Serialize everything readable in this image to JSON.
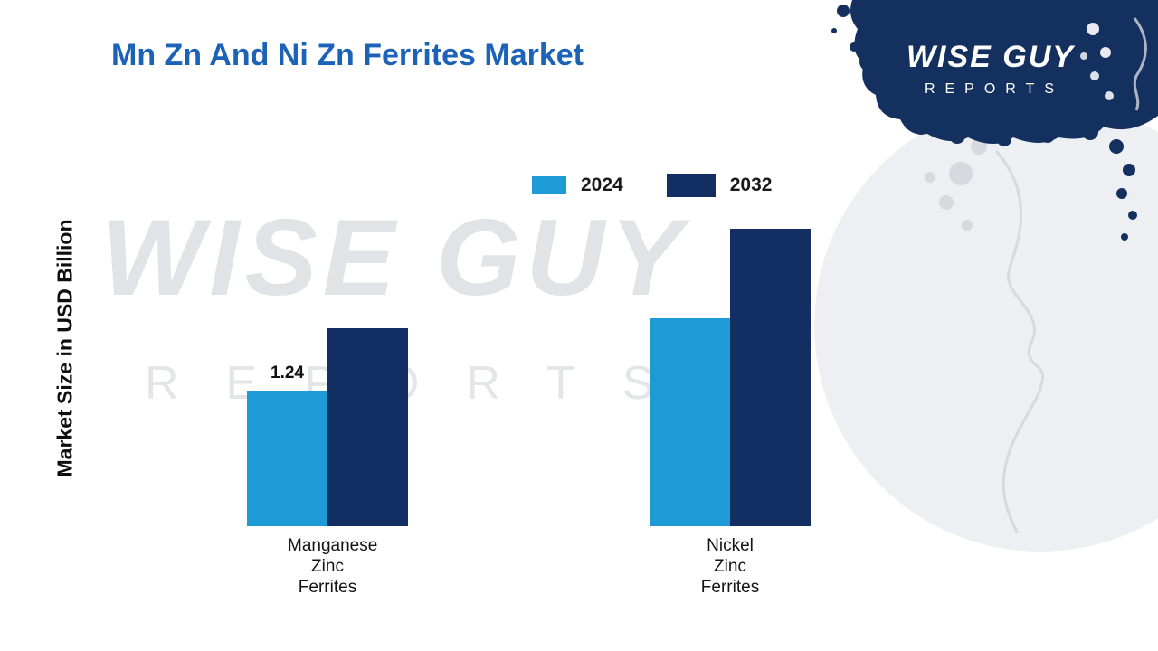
{
  "page": {
    "title": "Mn Zn And Ni Zn Ferrites Market"
  },
  "logo": {
    "brand_line1": "WISE GUY",
    "brand_line2": "REPORTS"
  },
  "watermark": {
    "line1": "WISE GUY",
    "line2": "REPORTS"
  },
  "colors": {
    "title_blue": "#1c63b7",
    "series_2024": "#1e9ad6",
    "series_2032": "#122e63",
    "corner_navy": "#14305f",
    "watermark_gray": "#e1e3e7",
    "circle_gray": "#edeff2"
  },
  "chart_data": {
    "type": "bar",
    "title": "Mn Zn And Ni Zn Ferrites Market",
    "ylabel": "Market Size in USD Billion",
    "xlabel": "",
    "categories": [
      "Manganese Zinc Ferrites",
      "Nickel Zinc Ferrites"
    ],
    "series": [
      {
        "name": "2024",
        "color": "#1e9ad6",
        "values": [
          1.24,
          1.9
        ]
      },
      {
        "name": "2032",
        "color": "#122e63",
        "values": [
          1.81,
          2.72
        ]
      }
    ],
    "data_labels": [
      {
        "text": "1.24",
        "category_index": 0,
        "series_index": 0
      }
    ],
    "ylim": [
      0,
      3
    ],
    "grid": false,
    "legend_position": "top-center"
  },
  "legend": {
    "items": [
      {
        "label": "2024",
        "color": "#1e9ad6"
      },
      {
        "label": "2032",
        "color": "#122e63"
      }
    ]
  }
}
